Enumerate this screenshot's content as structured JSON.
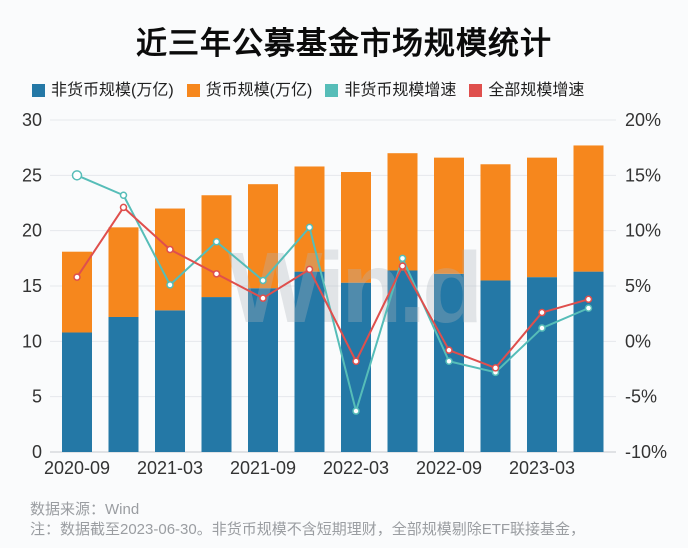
{
  "title": "近三年公募基金市场规模统计",
  "watermark": "Win.d",
  "footer": {
    "source": "数据来源：Wind",
    "note": "注：数据截至2023-06-30。非货币规模不含短期理财，全部规模剔除ETF联接基金，"
  },
  "colors": {
    "background": "#fafbfc",
    "grid": "#e5e8ec",
    "zero_axis": "#c6cace",
    "axis_text": "#333333",
    "footer_text": "#9a9da1",
    "watermark_fill": "#aeb4bc"
  },
  "chart_data": {
    "type": "bar+line",
    "title": "近三年公募基金市场规模统计",
    "categories": [
      "2020-09",
      "2020-12",
      "2021-03",
      "2021-06",
      "2021-09",
      "2021-12",
      "2022-03",
      "2022-06",
      "2022-09",
      "2022-12",
      "2023-03",
      "2023-06"
    ],
    "x_tick_labels": [
      "2020-09",
      "2021-03",
      "2021-09",
      "2022-03",
      "2022-09",
      "2023-03"
    ],
    "x_label_every": 2,
    "series": [
      {
        "name": "非货币规模(万亿)",
        "type": "bar",
        "stack": "total",
        "axis": "left",
        "color": "#2478a6",
        "values": [
          10.8,
          12.2,
          12.8,
          14.0,
          14.8,
          16.3,
          15.3,
          16.4,
          16.1,
          15.5,
          15.8,
          16.3
        ]
      },
      {
        "name": "货币规模(万亿)",
        "type": "bar",
        "stack": "total",
        "axis": "left",
        "color": "#f6871d",
        "values": [
          7.3,
          8.1,
          9.2,
          9.2,
          9.4,
          9.5,
          10.0,
          10.6,
          10.5,
          10.5,
          10.8,
          11.4
        ]
      },
      {
        "name": "非货币规模增速",
        "type": "line",
        "axis": "right",
        "color": "#56bdb8",
        "values": [
          15.0,
          13.2,
          5.1,
          9.0,
          5.5,
          10.3,
          -6.3,
          7.5,
          -1.8,
          -2.8,
          1.2,
          3.0
        ]
      },
      {
        "name": "全部规模增速",
        "type": "line",
        "axis": "right",
        "color": "#df4f4d",
        "values": [
          5.8,
          12.1,
          8.3,
          6.1,
          3.9,
          6.5,
          -1.8,
          6.8,
          -0.8,
          -2.4,
          2.6,
          3.8
        ]
      }
    ],
    "left_axis": {
      "min": 0,
      "max": 30,
      "step": 5,
      "ticks": [
        "0",
        "5",
        "10",
        "15",
        "20",
        "25",
        "30"
      ]
    },
    "right_axis": {
      "min": -10,
      "max": 20,
      "step": 5,
      "ticks": [
        "-10%",
        "-5%",
        "0%",
        "5%",
        "10%",
        "15%",
        "20%"
      ]
    },
    "grid": true,
    "legend_position": "top"
  }
}
